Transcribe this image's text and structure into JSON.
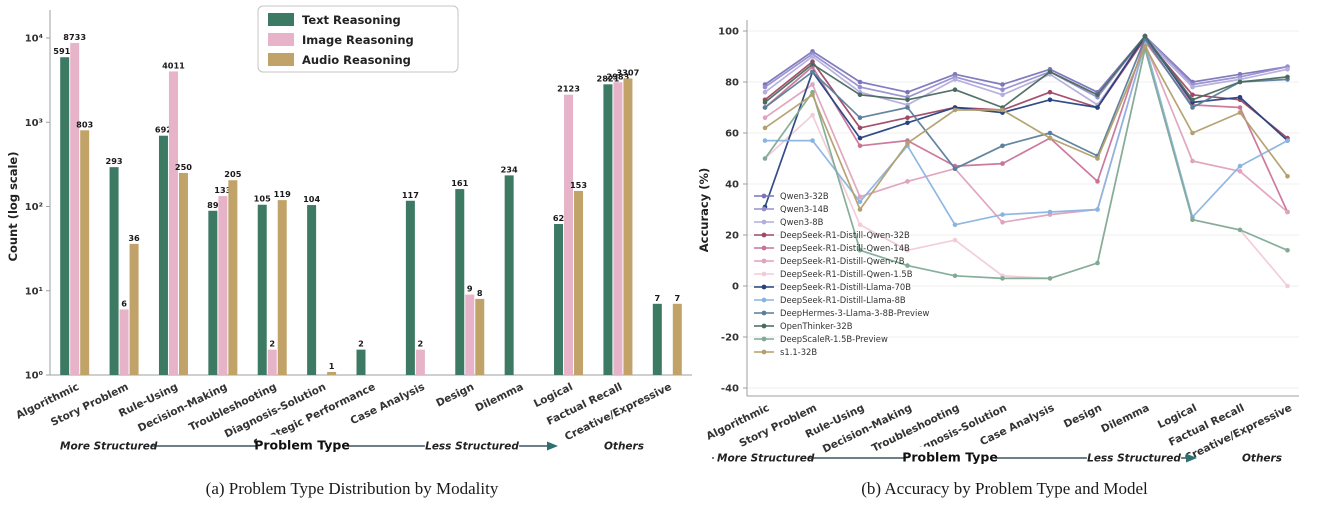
{
  "figure": {
    "caption_a": "(a) Problem Type Distribution by Modality",
    "caption_b": "(b) Accuracy by Problem Type and Model"
  },
  "chart_data": [
    {
      "id": "problem-type-distribution",
      "type": "bar",
      "yscale": "log",
      "ylabel": "Count (log scale)",
      "ylim": [
        1,
        10000
      ],
      "ytick_labels": [
        "10⁰",
        "10¹",
        "10²",
        "10³",
        "10⁴"
      ],
      "grid": false,
      "legend_position": "top-center-framed",
      "categories": [
        "Algorithmic",
        "Story Problem",
        "Rule-Using",
        "Decision-Making",
        "Troubleshooting",
        "Diagnosis-Solution",
        "Strategic Performance",
        "Case Analysis",
        "Design",
        "Dilemma",
        "Logical",
        "Factual Recall",
        "Creative/Expressive"
      ],
      "series": [
        {
          "name": "Text Reasoning",
          "color": "#3d7a64",
          "values": [
            5910,
            293,
            692,
            89,
            105,
            104,
            2,
            117,
            161,
            234,
            62,
            2821,
            7
          ]
        },
        {
          "name": "Image Reasoning",
          "color": "#e6b3c9",
          "values": [
            8733,
            6,
            4011,
            133,
            2,
            null,
            null,
            2,
            9,
            null,
            2123,
            2983,
            null
          ]
        },
        {
          "name": "Audio Reasoning",
          "color": "#c1a268",
          "values": [
            803,
            36,
            250,
            205,
            119,
            1,
            null,
            null,
            8,
            null,
            153,
            3307,
            7
          ]
        }
      ],
      "axis_annotation": {
        "left": "More Structured",
        "center": "Problem Type",
        "right": "Less Structured",
        "others": "Others"
      }
    },
    {
      "id": "accuracy-by-problem-type",
      "type": "line",
      "ylabel": "Accuracy (%)",
      "ylim": [
        -40,
        100
      ],
      "yticks": [
        100,
        80,
        60,
        40,
        20,
        0,
        -20,
        -40
      ],
      "grid": "horizontal",
      "legend_position": "inside-left",
      "categories": [
        "Algorithmic",
        "Story Problem",
        "Rule-Using",
        "Decision-Making",
        "Troubleshooting",
        "Diagnosis-Solution",
        "Case Analysis",
        "Design",
        "Dilemma",
        "Logical",
        "Factual Recall",
        "Creative/Expressive"
      ],
      "series": [
        {
          "name": "Qwen3-32B",
          "color": "#7b74bd",
          "values": [
            79,
            92,
            80,
            76,
            83,
            79,
            85,
            76,
            98,
            80,
            83,
            86
          ]
        },
        {
          "name": "Qwen3-14B",
          "color": "#968fce",
          "values": [
            78,
            91,
            78,
            74,
            82,
            77,
            84,
            74,
            98,
            79,
            82,
            86
          ]
        },
        {
          "name": "Qwen3-8B",
          "color": "#b4addd",
          "values": [
            76,
            90,
            76,
            71,
            81,
            75,
            83,
            71,
            97,
            78,
            81,
            85
          ]
        },
        {
          "name": "DeepSeek-R1-Distill-Qwen-32B",
          "color": "#a04765",
          "values": [
            73,
            88,
            62,
            66,
            70,
            69,
            76,
            70,
            97,
            75,
            73,
            58
          ]
        },
        {
          "name": "DeepSeek-R1-Distill-Qwen-14B",
          "color": "#c97497",
          "values": [
            70,
            86,
            55,
            57,
            47,
            48,
            58,
            41,
            96,
            71,
            70,
            29
          ]
        },
        {
          "name": "DeepSeek-R1-Distill-Qwen-7B",
          "color": "#e0a2bd",
          "values": [
            66,
            79,
            35,
            41,
            46,
            25,
            28,
            30,
            95,
            49,
            45,
            29
          ]
        },
        {
          "name": "DeepSeek-R1-Distill-Qwen-1.5B",
          "color": "#f1cbd8",
          "values": [
            50,
            67,
            24,
            14,
            18,
            4,
            3,
            9,
            93,
            26,
            22,
            0
          ]
        },
        {
          "name": "DeepSeek-R1-Distill-Llama-70B",
          "color": "#27427f",
          "values": [
            31,
            84,
            58,
            64,
            70,
            68,
            73,
            70,
            98,
            72,
            74,
            57
          ]
        },
        {
          "name": "DeepSeek-R1-Distill-Llama-8B",
          "color": "#8ab4e0",
          "values": [
            57,
            57,
            33,
            55,
            24,
            28,
            29,
            30,
            95,
            27,
            47,
            57
          ]
        },
        {
          "name": "DeepHermes-3-Llama-3-8B-Preview",
          "color": "#5a7e9b",
          "values": [
            70,
            84,
            66,
            70,
            46,
            55,
            60,
            51,
            97,
            70,
            80,
            81
          ]
        },
        {
          "name": "OpenThinker-32B",
          "color": "#4a6a60",
          "values": [
            72,
            87,
            75,
            73,
            77,
            70,
            84,
            75,
            98,
            73,
            80,
            82
          ]
        },
        {
          "name": "DeepScaleR-1.5B-Preview",
          "color": "#7fab96",
          "values": [
            50,
            76,
            14,
            8,
            4,
            3,
            3,
            9,
            93,
            26,
            22,
            14
          ]
        },
        {
          "name": "s1.1-32B",
          "color": "#b2a06d",
          "values": [
            62,
            75,
            30,
            56,
            69,
            69,
            58,
            50,
            94,
            60,
            68,
            43
          ]
        }
      ],
      "axis_annotation": {
        "left": "More Structured",
        "center": "Problem Type",
        "right": "Less Structured",
        "others": "Others"
      }
    }
  ]
}
